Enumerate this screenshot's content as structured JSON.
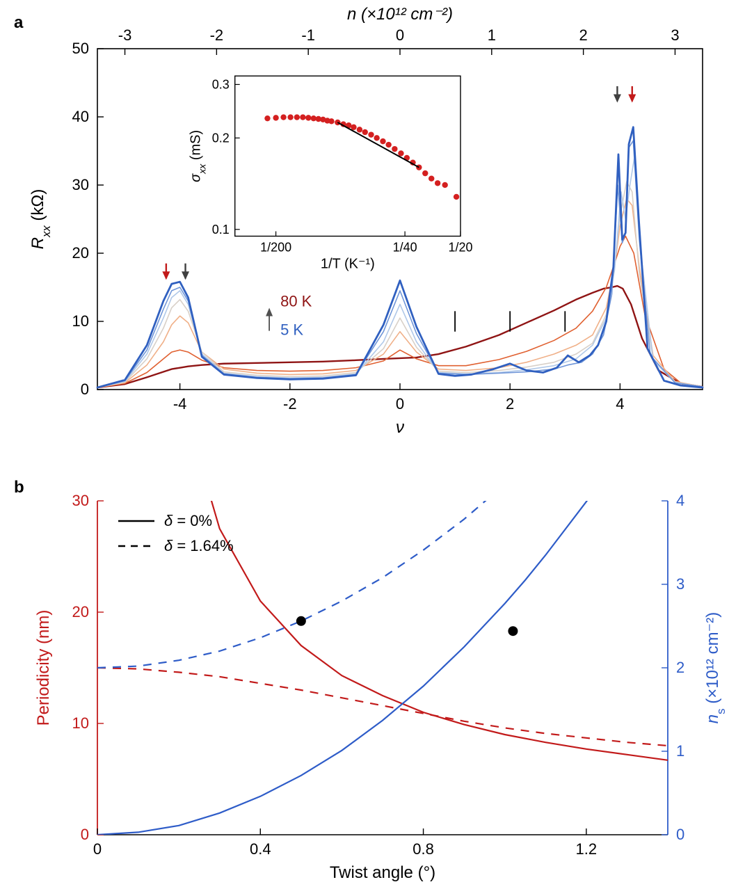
{
  "colors": {
    "black": "#000000",
    "red": "#c21a1a",
    "blue": "#2e5cc8",
    "frame": "#000000"
  },
  "panelA": {
    "label": "a",
    "label_fontsize": 24,
    "x_label_bottom": "ν",
    "x_label_top": "n (×10¹² cm⁻²)",
    "y_label": "R_{xx} (kΩ)",
    "x_range": [
      -5.5,
      5.5
    ],
    "y_range": [
      0,
      50
    ],
    "xticks_bottom": [
      -4,
      -2,
      0,
      2,
      4
    ],
    "yticks": [
      0,
      10,
      20,
      30,
      40,
      50
    ],
    "xticks_top": [
      -3,
      -2,
      -1,
      0,
      1,
      2,
      3
    ],
    "axis_fontsize": 22,
    "series_colors": [
      "#8f1414",
      "#e06030",
      "#f0b088",
      "#d8d0c8",
      "#b0c8e8",
      "#7096d8",
      "#3060c0"
    ],
    "series_widths": [
      2.4,
      1.6,
      1.6,
      1.6,
      1.6,
      1.6,
      2.8
    ],
    "series": [
      {
        "x": [
          -5.5,
          -5,
          -4.6,
          -4.3,
          -4.15,
          -4.0,
          -3.85,
          -3.6,
          -3.2,
          -2.6,
          -2,
          -1.4,
          -0.8,
          -0.3,
          0,
          0.3,
          0.7,
          1.2,
          1.8,
          2.3,
          2.8,
          3.2,
          3.5,
          3.7,
          3.85,
          3.95,
          4.05,
          4.2,
          4.4,
          4.7,
          5.1,
          5.5
        ],
        "y": [
          0.3,
          0.8,
          1.8,
          2.6,
          3.0,
          3.2,
          3.4,
          3.6,
          3.8,
          3.9,
          4.0,
          4.1,
          4.3,
          4.5,
          4.6,
          4.7,
          5.2,
          6.3,
          8.0,
          9.8,
          11.6,
          13.2,
          14.2,
          14.8,
          15.0,
          15.2,
          14.8,
          12.5,
          7.5,
          2.8,
          0.9,
          0.4
        ]
      },
      {
        "x": [
          -5.5,
          -5,
          -4.6,
          -4.3,
          -4.15,
          -4.0,
          -3.85,
          -3.6,
          -3.2,
          -2.6,
          -2,
          -1.4,
          -0.8,
          -0.3,
          0,
          0.3,
          0.7,
          1.2,
          1.8,
          2.3,
          2.8,
          3.2,
          3.5,
          3.75,
          3.9,
          4.0,
          4.1,
          4.25,
          4.45,
          4.8,
          5.1,
          5.5
        ],
        "y": [
          0.3,
          0.9,
          2.5,
          4.5,
          5.5,
          5.8,
          5.5,
          4.3,
          3.2,
          2.8,
          2.7,
          2.8,
          3.2,
          4.2,
          5.8,
          4.5,
          3.5,
          3.5,
          4.4,
          5.6,
          7.2,
          9.0,
          11.5,
          15.0,
          18.5,
          21.0,
          22.5,
          20.0,
          11.0,
          3.0,
          1.0,
          0.4
        ]
      },
      {
        "x": [
          -5.5,
          -5,
          -4.6,
          -4.3,
          -4.15,
          -4.0,
          -3.85,
          -3.6,
          -3.2,
          -2.6,
          -2,
          -1.4,
          -0.8,
          -0.3,
          0,
          0.3,
          0.7,
          1.2,
          1.8,
          2.3,
          2.8,
          3.2,
          3.5,
          3.75,
          3.9,
          4.0,
          4.12,
          4.22,
          4.35,
          4.6,
          5.0,
          5.5
        ],
        "y": [
          0.3,
          1.0,
          3.6,
          7.0,
          9.5,
          10.8,
          9.8,
          5.5,
          3.0,
          2.4,
          2.2,
          2.3,
          2.8,
          5.2,
          8.5,
          5.5,
          3.0,
          2.8,
          3.2,
          4.0,
          5.2,
          6.5,
          8.0,
          12.0,
          18.0,
          24.0,
          28.0,
          27.0,
          18.0,
          5.0,
          1.2,
          0.4
        ]
      },
      {
        "x": [
          -5.5,
          -5,
          -4.6,
          -4.3,
          -4.15,
          -4.0,
          -3.85,
          -3.6,
          -3.2,
          -2.6,
          -2,
          -1.4,
          -0.8,
          -0.3,
          0,
          0.3,
          0.7,
          1.2,
          1.8,
          2.3,
          2.8,
          3.2,
          3.5,
          3.75,
          3.9,
          4.0,
          4.12,
          4.22,
          4.35,
          4.6,
          5.0,
          5.5
        ],
        "y": [
          0.3,
          1.1,
          4.5,
          9.0,
          12.0,
          13.2,
          11.5,
          5.5,
          2.6,
          2.1,
          1.9,
          2.0,
          2.5,
          6.0,
          10.5,
          6.2,
          2.7,
          2.5,
          2.8,
          3.3,
          4.0,
          5.2,
          6.8,
          11.0,
          18.0,
          25.5,
          30.5,
          29.0,
          17.0,
          4.5,
          1.1,
          0.4
        ]
      },
      {
        "x": [
          -5.5,
          -5,
          -4.6,
          -4.3,
          -4.15,
          -4.0,
          -3.85,
          -3.6,
          -3.2,
          -2.6,
          -2,
          -1.4,
          -0.8,
          -0.3,
          0,
          0.3,
          0.7,
          1.2,
          1.8,
          2.3,
          2.8,
          3.2,
          3.5,
          3.75,
          3.9,
          4.02,
          4.1,
          4.18,
          4.26,
          4.38,
          4.6,
          5.0,
          5.5
        ],
        "y": [
          0.3,
          1.2,
          5.2,
          10.5,
          13.5,
          14.5,
          12.5,
          5.2,
          2.4,
          1.9,
          1.7,
          1.8,
          2.3,
          7.0,
          12.5,
          7.0,
          2.5,
          2.3,
          2.5,
          2.9,
          3.5,
          4.5,
          6.5,
          10.5,
          17.5,
          29.0,
          25.0,
          30.0,
          34.0,
          20.0,
          4.3,
          1.0,
          0.4
        ]
      },
      {
        "x": [
          -5.5,
          -5,
          -4.6,
          -4.3,
          -4.15,
          -4.0,
          -3.85,
          -3.6,
          -3.2,
          -2.6,
          -2,
          -1.4,
          -0.8,
          -0.3,
          0,
          0.3,
          0.7,
          1.2,
          1.8,
          2.3,
          2.8,
          3.05,
          3.3,
          3.5,
          3.7,
          3.85,
          3.96,
          4.04,
          4.1,
          4.16,
          4.24,
          4.35,
          4.55,
          5.0,
          5.5
        ],
        "y": [
          0.3,
          1.3,
          5.8,
          11.8,
          14.5,
          15.0,
          13.0,
          5.0,
          2.3,
          1.8,
          1.6,
          1.7,
          2.2,
          8.5,
          14.5,
          8.2,
          2.4,
          2.2,
          2.4,
          2.6,
          3.0,
          3.6,
          4.0,
          5.2,
          8.0,
          14.0,
          30.0,
          21.5,
          23.0,
          35.5,
          36.5,
          22.0,
          5.0,
          1.0,
          0.4
        ]
      },
      {
        "x": [
          -5.5,
          -5,
          -4.6,
          -4.3,
          -4.15,
          -4.0,
          -3.85,
          -3.6,
          -3.2,
          -2.6,
          -2,
          -1.4,
          -0.8,
          -0.3,
          0,
          0.3,
          0.7,
          1.0,
          1.3,
          1.7,
          2.0,
          2.3,
          2.6,
          2.85,
          3.05,
          3.25,
          3.45,
          3.6,
          3.75,
          3.88,
          3.97,
          4.04,
          4.1,
          4.16,
          4.24,
          4.34,
          4.5,
          4.8,
          5.1,
          5.5
        ],
        "y": [
          0.3,
          1.4,
          6.5,
          13.0,
          15.5,
          15.8,
          13.5,
          4.8,
          2.2,
          1.7,
          1.5,
          1.6,
          2.1,
          9.5,
          16.0,
          9.2,
          2.3,
          2.0,
          2.2,
          3.0,
          3.8,
          2.8,
          2.5,
          3.2,
          5.0,
          4.0,
          5.0,
          6.5,
          10.0,
          18.0,
          34.5,
          22.0,
          23.0,
          36.0,
          38.5,
          25.0,
          6.0,
          1.3,
          0.6,
          0.3
        ]
      }
    ],
    "temp_hi": "80 K",
    "temp_lo": "5 K",
    "temp_hi_color": "#8f1414",
    "temp_lo_color": "#3060c0",
    "arrows_left": [
      {
        "x": -4.25,
        "color": "#c21a1a"
      },
      {
        "x": -3.9,
        "color": "#404040"
      }
    ],
    "arrows_right": [
      {
        "x": 3.95,
        "color": "#404040"
      },
      {
        "x": 4.22,
        "color": "#c21a1a"
      }
    ],
    "tick_markers": [
      1,
      2,
      3
    ],
    "inset": {
      "x_label": "1/T (K⁻¹)",
      "y_label": "σ_{xx} (mS)",
      "x_range": [
        0.003,
        0.05
      ],
      "y_range": [
        0.095,
        0.32
      ],
      "xticks": [
        0.005,
        0.025,
        0.05
      ],
      "xtick_labels": [
        "1/200",
        "1/40",
        "1/20"
      ],
      "yticks": [
        0.1,
        0.2,
        0.3
      ],
      "marker_color": "#d42020",
      "fit_color": "#000000",
      "data": [
        [
          0.0045,
          0.232
        ],
        [
          0.005,
          0.233
        ],
        [
          0.0055,
          0.234
        ],
        [
          0.006,
          0.234
        ],
        [
          0.0065,
          0.234
        ],
        [
          0.007,
          0.234
        ],
        [
          0.0075,
          0.233
        ],
        [
          0.008,
          0.232
        ],
        [
          0.0085,
          0.231
        ],
        [
          0.009,
          0.23
        ],
        [
          0.0095,
          0.228
        ],
        [
          0.01,
          0.227
        ],
        [
          0.0108,
          0.225
        ],
        [
          0.0116,
          0.222
        ],
        [
          0.0124,
          0.22
        ],
        [
          0.0132,
          0.217
        ],
        [
          0.0142,
          0.213
        ],
        [
          0.0152,
          0.209
        ],
        [
          0.0164,
          0.205
        ],
        [
          0.0176,
          0.2
        ],
        [
          0.019,
          0.195
        ],
        [
          0.0204,
          0.19
        ],
        [
          0.022,
          0.184
        ],
        [
          0.0238,
          0.178
        ],
        [
          0.0256,
          0.172
        ],
        [
          0.0276,
          0.166
        ],
        [
          0.0298,
          0.16
        ],
        [
          0.0322,
          0.153
        ],
        [
          0.0348,
          0.147
        ],
        [
          0.0376,
          0.142
        ],
        [
          0.0412,
          0.14
        ],
        [
          0.0475,
          0.128
        ]
      ],
      "fit_x": [
        0.0108,
        0.0298
      ],
      "fit_y": [
        0.225,
        0.16
      ]
    }
  },
  "panelB": {
    "label": "b",
    "label_fontsize": 24,
    "x_label": "Twist angle (°)",
    "y_left_label": "Periodicity (nm)",
    "y_right_label": "n_{s} (×10¹² cm⁻²)",
    "x_range": [
      0,
      1.4
    ],
    "y_left_range": [
      0,
      30
    ],
    "y_right_range": [
      0,
      4
    ],
    "xticks": [
      0,
      0.4,
      0.8,
      1.2
    ],
    "yticks_left": [
      0,
      10,
      20,
      30
    ],
    "yticks_right": [
      0,
      1,
      2,
      3,
      4
    ],
    "axis_fontsize": 22,
    "left_color": "#c21a1a",
    "right_color": "#2e5cc8",
    "legend": [
      {
        "text": "δ = 0%",
        "dash": "solid"
      },
      {
        "text": "δ = 1.64%",
        "dash": "dashed"
      }
    ],
    "red_solid": [
      [
        0.02,
        200
      ],
      [
        0.1,
        80
      ],
      [
        0.2,
        40
      ],
      [
        0.3,
        27.5
      ],
      [
        0.4,
        21.0
      ],
      [
        0.5,
        17.0
      ],
      [
        0.6,
        14.3
      ],
      [
        0.7,
        12.5
      ],
      [
        0.8,
        11.0
      ],
      [
        0.9,
        9.9
      ],
      [
        1.0,
        9.0
      ],
      [
        1.1,
        8.3
      ],
      [
        1.2,
        7.7
      ],
      [
        1.3,
        7.2
      ],
      [
        1.4,
        6.7
      ]
    ],
    "red_dashed": [
      [
        0.0,
        15.0
      ],
      [
        0.1,
        14.9
      ],
      [
        0.2,
        14.6
      ],
      [
        0.3,
        14.2
      ],
      [
        0.4,
        13.6
      ],
      [
        0.5,
        13.0
      ],
      [
        0.6,
        12.3
      ],
      [
        0.7,
        11.6
      ],
      [
        0.8,
        10.9
      ],
      [
        0.9,
        10.2
      ],
      [
        1.0,
        9.6
      ],
      [
        1.1,
        9.1
      ],
      [
        1.2,
        8.7
      ],
      [
        1.3,
        8.3
      ],
      [
        1.4,
        8.0
      ]
    ],
    "blue_solid": [
      [
        0.0,
        0.0
      ],
      [
        0.1,
        0.03
      ],
      [
        0.2,
        0.11
      ],
      [
        0.3,
        0.26
      ],
      [
        0.4,
        0.46
      ],
      [
        0.5,
        0.71
      ],
      [
        0.6,
        1.01
      ],
      [
        0.7,
        1.37
      ],
      [
        0.8,
        1.78
      ],
      [
        0.9,
        2.25
      ],
      [
        1.0,
        2.77
      ],
      [
        1.05,
        3.05
      ],
      [
        1.1,
        3.35
      ],
      [
        1.2,
        3.99
      ],
      [
        1.25,
        4.33
      ]
    ],
    "blue_dashed": [
      [
        0.0,
        2.0
      ],
      [
        0.05,
        2.01
      ],
      [
        0.1,
        2.02
      ],
      [
        0.2,
        2.09
      ],
      [
        0.3,
        2.2
      ],
      [
        0.4,
        2.36
      ],
      [
        0.5,
        2.56
      ],
      [
        0.6,
        2.8
      ],
      [
        0.7,
        3.08
      ],
      [
        0.8,
        3.41
      ],
      [
        0.9,
        3.78
      ],
      [
        1.0,
        4.2
      ]
    ],
    "black_points": [
      {
        "x": 0.5,
        "y_right": 2.56
      },
      {
        "x": 1.02,
        "y_right": 2.44
      }
    ]
  }
}
